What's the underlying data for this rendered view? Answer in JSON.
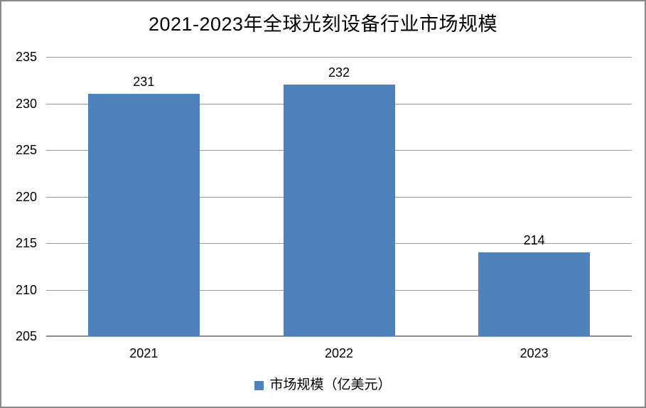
{
  "title": "2021-2023年全球光刻设备行业市场规模",
  "chart_data": {
    "type": "bar",
    "title": "2021-2023年全球光刻设备行业市场规模",
    "categories": [
      "2021",
      "2022",
      "2023"
    ],
    "values": [
      231,
      232,
      214
    ],
    "data_labels": [
      "231",
      "232",
      "214"
    ],
    "xlabel": "",
    "ylabel": "",
    "ylim": [
      205,
      235
    ],
    "yticks": [
      205,
      210,
      215,
      220,
      225,
      230,
      235
    ],
    "grid": true,
    "legend": {
      "label": "市场规模（亿美元）",
      "position": "bottom"
    }
  },
  "colors": {
    "bar": "#4F81BD",
    "gridline": "#9a9a9a",
    "axis_line": "#808080",
    "frame_border": "#898989",
    "text": "#000000",
    "background": "#FFFFFF"
  }
}
